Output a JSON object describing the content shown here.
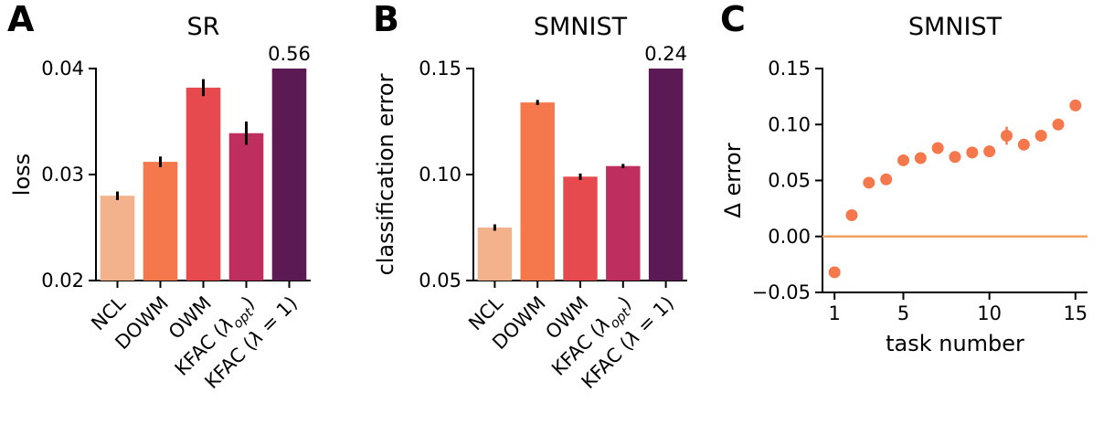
{
  "figure": {
    "background": "#ffffff",
    "panel_letters": [
      "A",
      "B",
      "C"
    ]
  },
  "chart_data": [
    {
      "id": "A",
      "type": "bar",
      "title": "SR",
      "ylabel": "loss",
      "categories_plain": [
        "NCL",
        "DOWM",
        "OWM",
        "KFAC (λ_opt)",
        "KFAC (λ = 1)"
      ],
      "categories_rich": [
        [
          "NCL"
        ],
        [
          "DOWM"
        ],
        [
          "OWM"
        ],
        [
          "KFAC (",
          {
            "i": "λ"
          },
          {
            "sub": "opt"
          },
          ")"
        ],
        [
          "KFAC (",
          {
            "i": "λ"
          },
          " = 1)"
        ]
      ],
      "values": [
        0.028,
        0.0312,
        0.0382,
        0.0339,
        0.56
      ],
      "errors": [
        0.0004,
        0.0005,
        0.0008,
        0.0011,
        0
      ],
      "bar_colors": [
        "#f3b28c",
        "#f4784c",
        "#e64a4e",
        "#be2f5f",
        "#5b1a53"
      ],
      "ylim": [
        0.02,
        0.04
      ],
      "ytick_values": [
        0.02,
        0.03,
        0.04
      ],
      "ytick_labels": [
        "0.02",
        "0.03",
        "0.04"
      ],
      "clipped_bars": [
        {
          "index": 4,
          "label": "0.56",
          "true_value": 0.56
        }
      ],
      "grid": false,
      "legend": "none"
    },
    {
      "id": "B",
      "type": "bar",
      "title": "SMNIST",
      "ylabel": "classification error",
      "categories_plain": [
        "NCL",
        "DOWM",
        "OWM",
        "KFAC (λ_opt)",
        "KFAC (λ = 1)"
      ],
      "categories_rich": [
        [
          "NCL"
        ],
        [
          "DOWM"
        ],
        [
          "OWM"
        ],
        [
          "KFAC (",
          {
            "i": "λ"
          },
          {
            "sub": "opt"
          },
          ")"
        ],
        [
          "KFAC (",
          {
            "i": "λ"
          },
          " = 1)"
        ]
      ],
      "values": [
        0.075,
        0.134,
        0.099,
        0.104,
        0.24
      ],
      "errors": [
        0.0015,
        0.0012,
        0.0015,
        0.001,
        0
      ],
      "bar_colors": [
        "#f3b28c",
        "#f4784c",
        "#e64a4e",
        "#be2f5f",
        "#5b1a53"
      ],
      "ylim": [
        0.05,
        0.15
      ],
      "ytick_values": [
        0.05,
        0.1,
        0.15
      ],
      "ytick_labels": [
        "0.05",
        "0.10",
        "0.15"
      ],
      "clipped_bars": [
        {
          "index": 4,
          "label": "0.24",
          "true_value": 0.24
        }
      ],
      "grid": false,
      "legend": "none"
    },
    {
      "id": "C",
      "type": "scatter",
      "title": "SMNIST",
      "ylabel": "Δ error",
      "xlabel": "task number",
      "x": [
        1,
        2,
        3,
        4,
        5,
        6,
        7,
        8,
        9,
        10,
        11,
        12,
        13,
        14,
        15
      ],
      "y": [
        -0.032,
        0.019,
        0.048,
        0.051,
        0.068,
        0.07,
        0.079,
        0.071,
        0.075,
        0.076,
        0.09,
        0.082,
        0.09,
        0.1,
        0.117
      ],
      "errors": [
        0.002,
        0.002,
        0.003,
        0.003,
        0.003,
        0.003,
        0.003,
        0.003,
        0.003,
        0.003,
        0.008,
        0.003,
        0.004,
        0.003,
        0.005
      ],
      "point_color": "#f4784c",
      "zero_line": {
        "y": 0.0,
        "color": "#f2a25f"
      },
      "xlim": [
        0.3,
        15.7
      ],
      "ylim": [
        -0.05,
        0.15
      ],
      "xtick_values": [
        1,
        5,
        10,
        15
      ],
      "xtick_labels": [
        "1",
        "5",
        "10",
        "15"
      ],
      "ytick_values": [
        -0.05,
        0,
        0.05,
        0.1,
        0.15
      ],
      "ytick_labels": [
        "−0.05",
        "0.00",
        "0.05",
        "0.10",
        "0.15"
      ],
      "grid": false,
      "legend": "none"
    }
  ]
}
